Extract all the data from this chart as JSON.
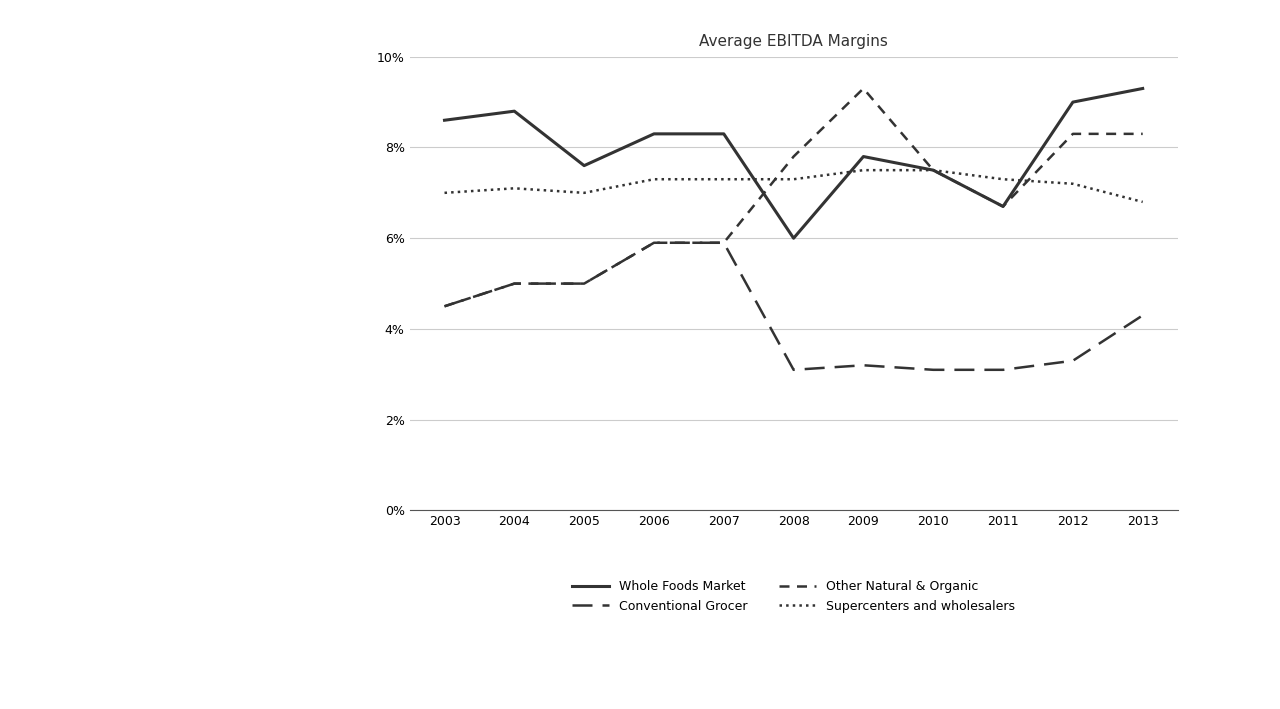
{
  "title": "Average EBITDA Margins",
  "years": [
    2003,
    2004,
    2005,
    2006,
    2007,
    2008,
    2009,
    2010,
    2011,
    2012,
    2013
  ],
  "whole_foods": [
    8.6,
    8.8,
    7.6,
    8.3,
    8.3,
    6.0,
    7.8,
    7.5,
    6.7,
    9.0,
    9.3
  ],
  "supercenters": [
    7.0,
    7.1,
    7.0,
    7.3,
    7.3,
    7.3,
    7.5,
    7.5,
    7.3,
    7.2,
    6.8
  ],
  "conventional": [
    4.5,
    5.0,
    5.0,
    5.9,
    5.9,
    3.1,
    3.2,
    3.1,
    3.1,
    3.3,
    4.3
  ],
  "other_natural": [
    4.5,
    5.0,
    5.0,
    5.9,
    5.9,
    7.8,
    9.3,
    7.5,
    6.7,
    8.3,
    8.3
  ],
  "ylim": [
    0,
    10
  ],
  "yticks": [
    0,
    2,
    4,
    6,
    8,
    10
  ],
  "ytick_labels": [
    "0%",
    "2%",
    "4%",
    "6%",
    "8%",
    "10%"
  ],
  "line_color": "#333333",
  "background_color": "#ffffff",
  "title_fontsize": 11,
  "axis_fontsize": 9,
  "legend_fontsize": 9
}
